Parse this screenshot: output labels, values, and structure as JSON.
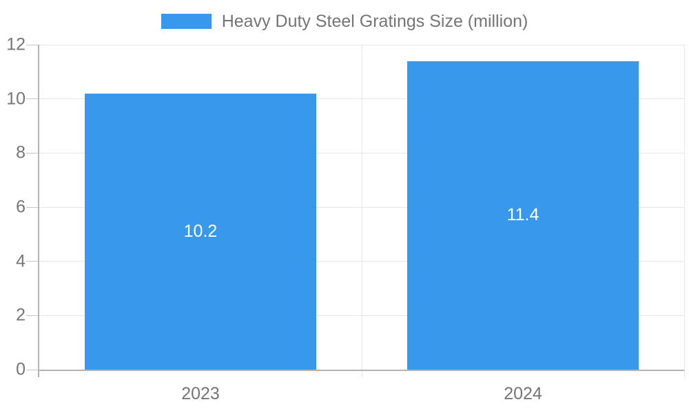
{
  "legend": {
    "label": "Heavy Duty Steel Gratings Size (million)"
  },
  "chart_data": {
    "type": "bar",
    "title": "",
    "categories": [
      "2023",
      "2024"
    ],
    "series": [
      {
        "name": "Heavy Duty Steel Gratings Size (million)",
        "values": [
          10.2,
          11.4
        ]
      }
    ],
    "value_labels": [
      "10.2",
      "11.4"
    ],
    "xlabel": "",
    "ylabel": "",
    "ylim": [
      0,
      12
    ],
    "yticks": [
      0,
      2,
      4,
      6,
      8,
      10,
      12
    ],
    "grid": true,
    "legend_position": "top",
    "bar_color": "#3899ec",
    "axis_color": "#b3b3b3",
    "gridline_color": "#e6e6e6",
    "text_color": "#757575",
    "value_label_color": "#ffffff"
  }
}
